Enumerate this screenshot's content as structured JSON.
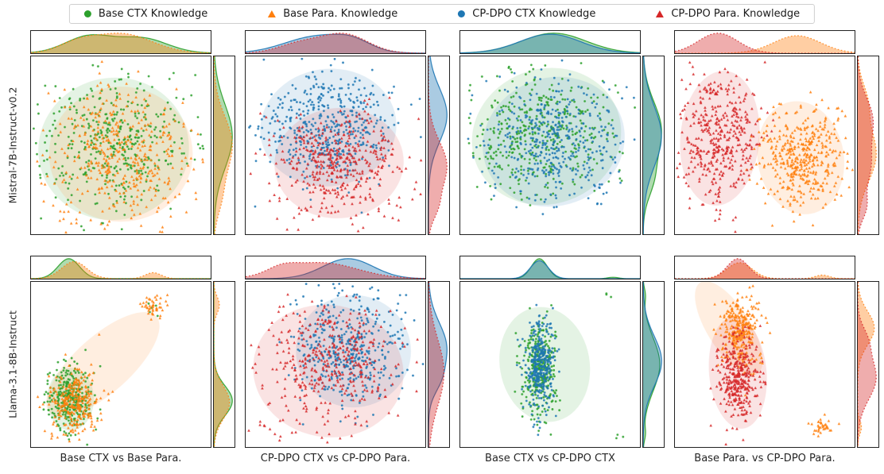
{
  "chart_data": {
    "type": "scatter",
    "description": "2x4 grid of 2D embedding scatter plots with confidence ellipses and marginal KDE density plots comparing knowledge representations",
    "legend": [
      {
        "label": "Base CTX Knowledge",
        "color": "#2ca02c",
        "marker": "circle"
      },
      {
        "label": "Base Para. Knowledge",
        "color": "#ff7f0e",
        "marker": "triangle"
      },
      {
        "label": "CP-DPO CTX Knowledge",
        "color": "#1f77b4",
        "marker": "circle"
      },
      {
        "label": "CP-DPO Para. Knowledge",
        "color": "#d62728",
        "marker": "triangle"
      }
    ],
    "columns": [
      "Base CTX vs Base Para.",
      "CP-DPO CTX vs CP-DPO Para.",
      "Base CTX vs CP-DPO CTX",
      "Base Para. vs CP-DPO Para."
    ],
    "rows": [
      {
        "label": "Mistral-7B-Instruct-v0.2",
        "panels": [
          {
            "series": [
              {
                "legend": 0,
                "clusters": [
                  {
                    "cx": 0.45,
                    "cy": 0.5,
                    "sx": 0.21,
                    "sy": 0.19,
                    "n": 420
                  }
                ],
                "ellipses": [
                  {
                    "cx": 0.46,
                    "cy": 0.52,
                    "rx": 0.42,
                    "ry": 0.4,
                    "rot": -10
                  }
                ],
                "top": [
                  {
                    "mu": 0.32,
                    "s": 0.13,
                    "w": 0.85
                  },
                  {
                    "mu": 0.62,
                    "s": 0.14,
                    "w": 0.75
                  }
                ],
                "right": [
                  {
                    "mu": 0.45,
                    "s": 0.18,
                    "w": 1.0
                  }
                ]
              },
              {
                "legend": 1,
                "clusters": [
                  {
                    "cx": 0.5,
                    "cy": 0.54,
                    "sx": 0.2,
                    "sy": 0.18,
                    "n": 420
                  }
                ],
                "ellipses": [
                  {
                    "cx": 0.5,
                    "cy": 0.55,
                    "rx": 0.4,
                    "ry": 0.38,
                    "rot": 0
                  }
                ],
                "top": [
                  {
                    "mu": 0.5,
                    "s": 0.17,
                    "w": 1.0
                  },
                  {
                    "mu": 0.25,
                    "s": 0.1,
                    "w": 0.4
                  }
                ],
                "right": [
                  {
                    "mu": 0.5,
                    "s": 0.16,
                    "w": 1.0
                  },
                  {
                    "mu": 0.8,
                    "s": 0.1,
                    "w": 0.3
                  }
                ]
              }
            ]
          },
          {
            "series": [
              {
                "legend": 2,
                "clusters": [
                  {
                    "cx": 0.45,
                    "cy": 0.38,
                    "sx": 0.18,
                    "sy": 0.15,
                    "n": 480
                  }
                ],
                "ellipses": [
                  {
                    "cx": 0.46,
                    "cy": 0.4,
                    "rx": 0.38,
                    "ry": 0.33,
                    "rot": -8
                  }
                ],
                "top": [
                  {
                    "mu": 0.4,
                    "s": 0.18,
                    "w": 0.9
                  },
                  {
                    "mu": 0.6,
                    "s": 0.1,
                    "w": 0.4
                  }
                ],
                "right": [
                  {
                    "mu": 0.33,
                    "s": 0.15,
                    "w": 1.0
                  }
                ]
              },
              {
                "legend": 3,
                "clusters": [
                  {
                    "cx": 0.52,
                    "cy": 0.6,
                    "sx": 0.17,
                    "sy": 0.15,
                    "n": 430
                  }
                ],
                "ellipses": [
                  {
                    "cx": 0.52,
                    "cy": 0.6,
                    "rx": 0.36,
                    "ry": 0.31,
                    "rot": -5
                  }
                ],
                "top": [
                  {
                    "mu": 0.55,
                    "s": 0.13,
                    "w": 1.0
                  },
                  {
                    "mu": 0.3,
                    "s": 0.12,
                    "w": 0.5
                  }
                ],
                "right": [
                  {
                    "mu": 0.62,
                    "s": 0.14,
                    "w": 1.0
                  },
                  {
                    "mu": 0.85,
                    "s": 0.07,
                    "w": 0.3
                  }
                ]
              }
            ]
          },
          {
            "series": [
              {
                "legend": 0,
                "clusters": [
                  {
                    "cx": 0.47,
                    "cy": 0.44,
                    "sx": 0.2,
                    "sy": 0.17,
                    "n": 430
                  }
                ],
                "ellipses": [
                  {
                    "cx": 0.48,
                    "cy": 0.45,
                    "rx": 0.42,
                    "ry": 0.38,
                    "rot": -20
                  }
                ],
                "top": [
                  {
                    "mu": 0.52,
                    "s": 0.18,
                    "w": 1.0
                  }
                ],
                "right": [
                  {
                    "mu": 0.42,
                    "s": 0.16,
                    "w": 1.0
                  },
                  {
                    "mu": 0.7,
                    "s": 0.1,
                    "w": 0.4
                  }
                ]
              },
              {
                "legend": 2,
                "clusters": [
                  {
                    "cx": 0.52,
                    "cy": 0.48,
                    "sx": 0.19,
                    "sy": 0.17,
                    "n": 430
                  }
                ],
                "ellipses": [
                  {
                    "cx": 0.52,
                    "cy": 0.48,
                    "rx": 0.4,
                    "ry": 0.36,
                    "rot": -20
                  }
                ],
                "top": [
                  {
                    "mu": 0.5,
                    "s": 0.17,
                    "w": 0.95
                  }
                ],
                "right": [
                  {
                    "mu": 0.45,
                    "s": 0.17,
                    "w": 1.0
                  }
                ]
              }
            ]
          },
          {
            "series": [
              {
                "legend": 1,
                "clusters": [
                  {
                    "cx": 0.7,
                    "cy": 0.58,
                    "sx": 0.12,
                    "sy": 0.15,
                    "n": 430
                  }
                ],
                "ellipses": [
                  {
                    "cx": 0.7,
                    "cy": 0.57,
                    "rx": 0.24,
                    "ry": 0.32,
                    "rot": -10
                  }
                ],
                "top": [
                  {
                    "mu": 0.68,
                    "s": 0.13,
                    "w": 0.7
                  }
                ],
                "right": [
                  {
                    "mu": 0.55,
                    "s": 0.15,
                    "w": 0.9
                  },
                  {
                    "mu": 0.25,
                    "s": 0.1,
                    "w": 0.4
                  }
                ]
              },
              {
                "legend": 3,
                "clusters": [
                  {
                    "cx": 0.24,
                    "cy": 0.45,
                    "sx": 0.12,
                    "sy": 0.19,
                    "n": 430
                  }
                ],
                "ellipses": [
                  {
                    "cx": 0.25,
                    "cy": 0.46,
                    "rx": 0.22,
                    "ry": 0.38,
                    "rot": 5
                  }
                ],
                "top": [
                  {
                    "mu": 0.24,
                    "s": 0.11,
                    "w": 0.8
                  }
                ],
                "right": [
                  {
                    "mu": 0.35,
                    "s": 0.12,
                    "w": 0.7
                  },
                  {
                    "mu": 0.62,
                    "s": 0.12,
                    "w": 0.6
                  },
                  {
                    "mu": 0.85,
                    "s": 0.07,
                    "w": 0.35
                  }
                ]
              }
            ]
          }
        ]
      },
      {
        "label": "Llama-3.1-8B-Instruct",
        "panels": [
          {
            "series": [
              {
                "legend": 0,
                "clusters": [
                  {
                    "cx": 0.22,
                    "cy": 0.71,
                    "sx": 0.065,
                    "sy": 0.1,
                    "n": 330
                  },
                  {
                    "cx": 0.66,
                    "cy": 0.16,
                    "sx": 0.02,
                    "sy": 0.02,
                    "n": 5
                  }
                ],
                "ellipses": [
                  {
                    "cx": 0.22,
                    "cy": 0.71,
                    "rx": 0.13,
                    "ry": 0.19,
                    "rot": 0
                  }
                ],
                "top": [
                  {
                    "mu": 0.21,
                    "s": 0.06,
                    "w": 1.0
                  }
                ],
                "right": [
                  {
                    "mu": 0.72,
                    "s": 0.09,
                    "w": 1.0
                  }
                ]
              },
              {
                "legend": 1,
                "clusters": [
                  {
                    "cx": 0.24,
                    "cy": 0.72,
                    "sx": 0.07,
                    "sy": 0.1,
                    "n": 280
                  },
                  {
                    "cx": 0.68,
                    "cy": 0.14,
                    "sx": 0.035,
                    "sy": 0.035,
                    "n": 45
                  }
                ],
                "ellipses": [
                  {
                    "cx": 0.4,
                    "cy": 0.5,
                    "rx": 0.4,
                    "ry": 0.17,
                    "rot": -42
                  }
                ],
                "top": [
                  {
                    "mu": 0.24,
                    "s": 0.07,
                    "w": 0.85
                  },
                  {
                    "mu": 0.68,
                    "s": 0.045,
                    "w": 0.3
                  }
                ],
                "right": [
                  {
                    "mu": 0.73,
                    "s": 0.1,
                    "w": 0.85
                  },
                  {
                    "mu": 0.14,
                    "s": 0.05,
                    "w": 0.3
                  }
                ]
              }
            ]
          },
          {
            "series": [
              {
                "legend": 2,
                "clusters": [
                  {
                    "cx": 0.58,
                    "cy": 0.4,
                    "sx": 0.15,
                    "sy": 0.17,
                    "n": 450
                  }
                ],
                "ellipses": [
                  {
                    "cx": 0.6,
                    "cy": 0.42,
                    "rx": 0.32,
                    "ry": 0.34,
                    "rot": 0
                  }
                ],
                "top": [
                  {
                    "mu": 0.57,
                    "s": 0.14,
                    "w": 1.0
                  }
                ],
                "right": [
                  {
                    "mu": 0.4,
                    "s": 0.15,
                    "w": 1.0
                  },
                  {
                    "mu": 0.6,
                    "s": 0.08,
                    "w": 0.3
                  }
                ]
              },
              {
                "legend": 3,
                "clusters": [
                  {
                    "cx": 0.5,
                    "cy": 0.45,
                    "sx": 0.16,
                    "sy": 0.16,
                    "n": 260
                  },
                  {
                    "cx": 0.35,
                    "cy": 0.6,
                    "sx": 0.25,
                    "sy": 0.22,
                    "n": 160
                  }
                ],
                "ellipses": [
                  {
                    "cx": 0.46,
                    "cy": 0.54,
                    "rx": 0.42,
                    "ry": 0.4,
                    "rot": 10
                  }
                ],
                "top": [
                  {
                    "mu": 0.42,
                    "s": 0.2,
                    "w": 0.8
                  },
                  {
                    "mu": 0.2,
                    "s": 0.08,
                    "w": 0.3
                  }
                ],
                "right": [
                  {
                    "mu": 0.55,
                    "s": 0.2,
                    "w": 0.85
                  }
                ]
              }
            ]
          },
          {
            "series": [
              {
                "legend": 0,
                "clusters": [
                  {
                    "cx": 0.44,
                    "cy": 0.52,
                    "sx": 0.045,
                    "sy": 0.15,
                    "n": 330
                  },
                  {
                    "cx": 0.82,
                    "cy": 0.07,
                    "sx": 0.01,
                    "sy": 0.01,
                    "n": 3
                  },
                  {
                    "cx": 0.88,
                    "cy": 0.93,
                    "sx": 0.01,
                    "sy": 0.01,
                    "n": 3
                  }
                ],
                "ellipses": [
                  {
                    "cx": 0.47,
                    "cy": 0.5,
                    "rx": 0.25,
                    "ry": 0.35,
                    "rot": -10
                  }
                ],
                "top": [
                  {
                    "mu": 0.44,
                    "s": 0.045,
                    "w": 1.0
                  },
                  {
                    "mu": 0.85,
                    "s": 0.03,
                    "w": 0.07
                  }
                ],
                "right": [
                  {
                    "mu": 0.5,
                    "s": 0.16,
                    "w": 0.9
                  },
                  {
                    "mu": 0.08,
                    "s": 0.04,
                    "w": 0.1
                  },
                  {
                    "mu": 0.92,
                    "s": 0.04,
                    "w": 0.1
                  }
                ]
              },
              {
                "legend": 2,
                "clusters": [
                  {
                    "cx": 0.44,
                    "cy": 0.5,
                    "sx": 0.04,
                    "sy": 0.14,
                    "n": 330
                  }
                ],
                "ellipses": [],
                "top": [
                  {
                    "mu": 0.44,
                    "s": 0.05,
                    "w": 0.9
                  }
                ],
                "right": [
                  {
                    "mu": 0.48,
                    "s": 0.15,
                    "w": 1.0
                  }
                ]
              }
            ]
          },
          {
            "series": [
              {
                "legend": 1,
                "clusters": [
                  {
                    "cx": 0.36,
                    "cy": 0.29,
                    "sx": 0.055,
                    "sy": 0.11,
                    "n": 300
                  },
                  {
                    "cx": 0.82,
                    "cy": 0.88,
                    "sx": 0.035,
                    "sy": 0.03,
                    "n": 35
                  }
                ],
                "ellipses": [
                  {
                    "cx": 0.3,
                    "cy": 0.28,
                    "rx": 0.3,
                    "ry": 0.13,
                    "rot": 58
                  }
                ],
                "top": [
                  {
                    "mu": 0.36,
                    "s": 0.07,
                    "w": 0.8
                  },
                  {
                    "mu": 0.82,
                    "s": 0.04,
                    "w": 0.18
                  }
                ],
                "right": [
                  {
                    "mu": 0.28,
                    "s": 0.1,
                    "w": 0.9
                  },
                  {
                    "mu": 0.88,
                    "s": 0.04,
                    "w": 0.2
                  }
                ]
              },
              {
                "legend": 3,
                "clusters": [
                  {
                    "cx": 0.35,
                    "cy": 0.58,
                    "sx": 0.055,
                    "sy": 0.14,
                    "n": 340
                  }
                ],
                "ellipses": [
                  {
                    "cx": 0.35,
                    "cy": 0.55,
                    "rx": 0.16,
                    "ry": 0.34,
                    "rot": -5
                  }
                ],
                "top": [
                  {
                    "mu": 0.35,
                    "s": 0.06,
                    "w": 1.0
                  }
                ],
                "right": [
                  {
                    "mu": 0.58,
                    "s": 0.13,
                    "w": 1.0
                  },
                  {
                    "mu": 0.35,
                    "s": 0.08,
                    "w": 0.4
                  }
                ]
              }
            ]
          }
        ]
      }
    ]
  }
}
